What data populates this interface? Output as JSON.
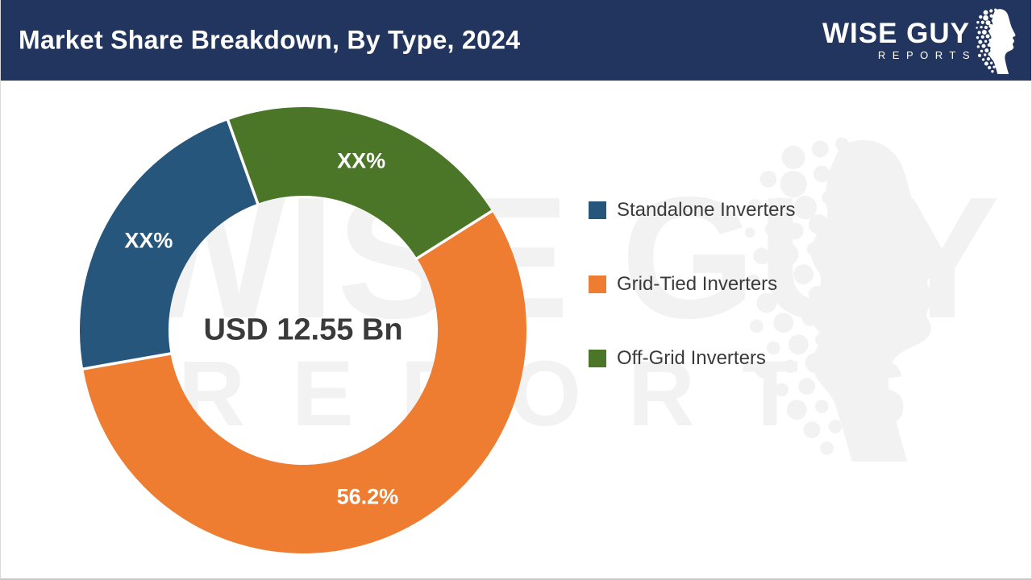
{
  "header": {
    "title": "Market Share Breakdown, By Type, 2024",
    "logo": {
      "line1": "WISE GUY",
      "line2": "REPORTS"
    }
  },
  "watermark": {
    "line1": "WISE GUY",
    "line2": "REPORTS"
  },
  "chart_data": {
    "type": "pie",
    "variant": "donut",
    "title": "Market Share Breakdown, By Type, 2024",
    "center_label": "USD 12.55 Bn",
    "segments": [
      {
        "name": "Standalone Inverters",
        "displayed_label": "XX%",
        "value_pct_est": 22.3,
        "color": "#27567D"
      },
      {
        "name": "Grid-Tied Inverters",
        "displayed_label": "56.2%",
        "value_pct_est": 56.2,
        "color": "#EE7D31"
      },
      {
        "name": "Off-Grid Inverters",
        "displayed_label": "XX%",
        "value_pct_est": 21.5,
        "color": "#4B7628"
      }
    ],
    "layout": {
      "legend_position": "right",
      "start_angle_deg": 340.3,
      "draw_order": [
        2,
        1,
        0
      ],
      "inner_radius_frac": 0.603,
      "label_radius_frac": 0.8,
      "separator_color": "#FFFFFF"
    },
    "colors": {
      "header_bg": "#22355F",
      "text_dark": "#3A3A3A",
      "watermark": "#F2F2F2"
    }
  }
}
